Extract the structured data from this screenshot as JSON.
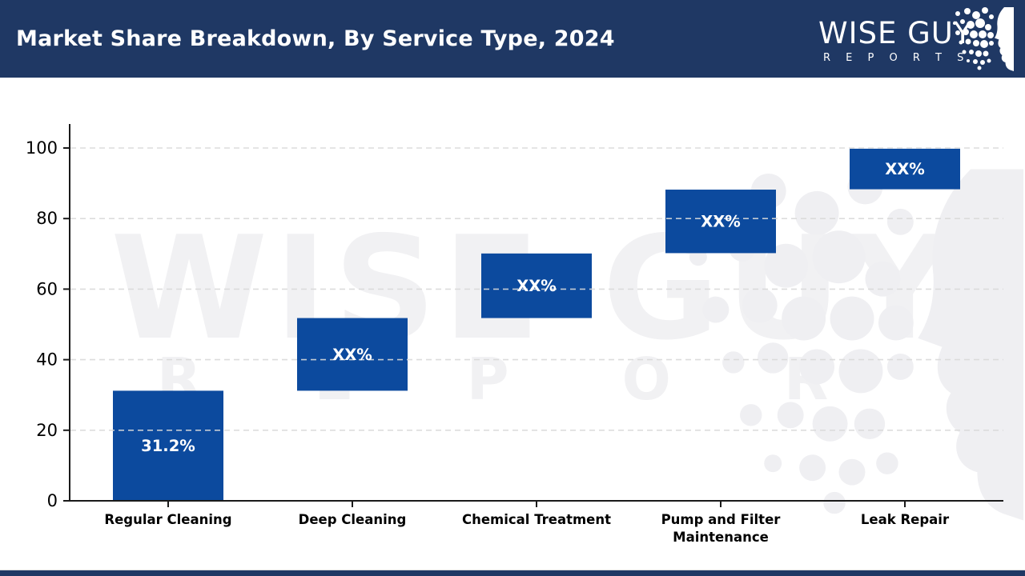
{
  "header": {
    "title": "Market Share Breakdown, By Service Type, 2024",
    "logo": {
      "line1": "WISE GUY",
      "line2": "R E P O R T S"
    }
  },
  "watermark": {
    "line1": "WISE GUY",
    "line2": "R E P O R T S"
  },
  "colors": {
    "header_bg": "#1f3864",
    "bar": "#0c4a9e",
    "bar_label": "#ffffff",
    "grid": "#d9d9d9",
    "axis": "#1a1a1a",
    "watermark": "#f1f1f3"
  },
  "chart_data": {
    "type": "bar",
    "subtype": "waterfall",
    "title": "Market Share Breakdown, By Service Type, 2024",
    "xlabel": "",
    "ylabel": "",
    "ylim": [
      0,
      106
    ],
    "yticks": [
      0,
      20,
      40,
      60,
      80,
      100
    ],
    "grid": "horizontal-dashed",
    "legend": "none",
    "categories": [
      "Regular Cleaning",
      "Deep Cleaning",
      "Chemical Treatment",
      "Pump and Filter Maintenance",
      "Leak Repair"
    ],
    "bars": [
      {
        "category": "Regular Cleaning",
        "tick_lines": [
          "Regular Cleaning"
        ],
        "start": 0,
        "end": 31.2,
        "label": "31.2%"
      },
      {
        "category": "Deep Cleaning",
        "tick_lines": [
          "Deep Cleaning"
        ],
        "start": 31.2,
        "end": 51.8,
        "label": "XX%"
      },
      {
        "category": "Chemical Treatment",
        "tick_lines": [
          "Chemical Treatment"
        ],
        "start": 51.8,
        "end": 70.1,
        "label": "XX%"
      },
      {
        "category": "Pump and Filter Maintenance",
        "tick_lines": [
          "Pump and Filter",
          "Maintenance"
        ],
        "start": 70.2,
        "end": 88.2,
        "label": "XX%"
      },
      {
        "category": "Leak Repair",
        "tick_lines": [
          "Leak Repair"
        ],
        "start": 88.3,
        "end": 99.8,
        "label": "XX%"
      }
    ]
  }
}
